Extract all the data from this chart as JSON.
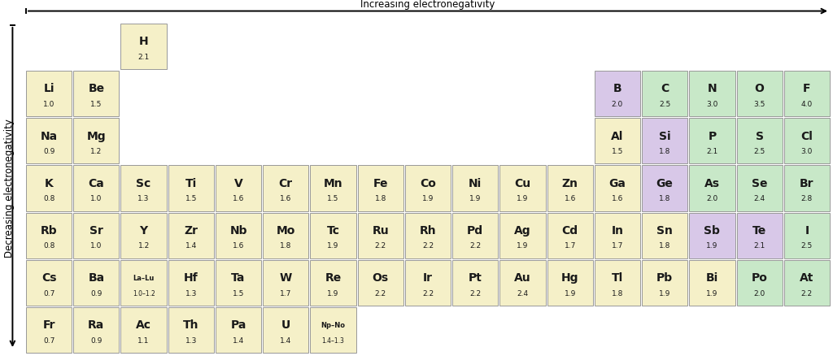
{
  "background": "#ffffff",
  "colors": {
    "yellow": "#f5f0c8",
    "purple": "#d8c8e8",
    "green": "#c8e8c8",
    "border": "#999999"
  },
  "elements": [
    {
      "symbol": "H",
      "value": "2.1",
      "col": 2,
      "row": 1,
      "color": "yellow"
    },
    {
      "symbol": "Li",
      "value": "1.0",
      "col": 0,
      "row": 2,
      "color": "yellow"
    },
    {
      "symbol": "Be",
      "value": "1.5",
      "col": 1,
      "row": 2,
      "color": "yellow"
    },
    {
      "symbol": "B",
      "value": "2.0",
      "col": 12,
      "row": 2,
      "color": "purple"
    },
    {
      "symbol": "C",
      "value": "2.5",
      "col": 13,
      "row": 2,
      "color": "green"
    },
    {
      "symbol": "N",
      "value": "3.0",
      "col": 14,
      "row": 2,
      "color": "green"
    },
    {
      "symbol": "O",
      "value": "3.5",
      "col": 15,
      "row": 2,
      "color": "green"
    },
    {
      "symbol": "F",
      "value": "4.0",
      "col": 16,
      "row": 2,
      "color": "green"
    },
    {
      "symbol": "Na",
      "value": "0.9",
      "col": 0,
      "row": 3,
      "color": "yellow"
    },
    {
      "symbol": "Mg",
      "value": "1.2",
      "col": 1,
      "row": 3,
      "color": "yellow"
    },
    {
      "symbol": "Al",
      "value": "1.5",
      "col": 12,
      "row": 3,
      "color": "yellow"
    },
    {
      "symbol": "Si",
      "value": "1.8",
      "col": 13,
      "row": 3,
      "color": "purple"
    },
    {
      "symbol": "P",
      "value": "2.1",
      "col": 14,
      "row": 3,
      "color": "green"
    },
    {
      "symbol": "S",
      "value": "2.5",
      "col": 15,
      "row": 3,
      "color": "green"
    },
    {
      "symbol": "Cl",
      "value": "3.0",
      "col": 16,
      "row": 3,
      "color": "green"
    },
    {
      "symbol": "K",
      "value": "0.8",
      "col": 0,
      "row": 4,
      "color": "yellow"
    },
    {
      "symbol": "Ca",
      "value": "1.0",
      "col": 1,
      "row": 4,
      "color": "yellow"
    },
    {
      "symbol": "Sc",
      "value": "1.3",
      "col": 2,
      "row": 4,
      "color": "yellow"
    },
    {
      "symbol": "Ti",
      "value": "1.5",
      "col": 3,
      "row": 4,
      "color": "yellow"
    },
    {
      "symbol": "V",
      "value": "1.6",
      "col": 4,
      "row": 4,
      "color": "yellow"
    },
    {
      "symbol": "Cr",
      "value": "1.6",
      "col": 5,
      "row": 4,
      "color": "yellow"
    },
    {
      "symbol": "Mn",
      "value": "1.5",
      "col": 6,
      "row": 4,
      "color": "yellow"
    },
    {
      "symbol": "Fe",
      "value": "1.8",
      "col": 7,
      "row": 4,
      "color": "yellow"
    },
    {
      "symbol": "Co",
      "value": "1.9",
      "col": 8,
      "row": 4,
      "color": "yellow"
    },
    {
      "symbol": "Ni",
      "value": "1.9",
      "col": 9,
      "row": 4,
      "color": "yellow"
    },
    {
      "symbol": "Cu",
      "value": "1.9",
      "col": 10,
      "row": 4,
      "color": "yellow"
    },
    {
      "symbol": "Zn",
      "value": "1.6",
      "col": 11,
      "row": 4,
      "color": "yellow"
    },
    {
      "symbol": "Ga",
      "value": "1.6",
      "col": 12,
      "row": 4,
      "color": "yellow"
    },
    {
      "symbol": "Ge",
      "value": "1.8",
      "col": 13,
      "row": 4,
      "color": "purple"
    },
    {
      "symbol": "As",
      "value": "2.0",
      "col": 14,
      "row": 4,
      "color": "green"
    },
    {
      "symbol": "Se",
      "value": "2.4",
      "col": 15,
      "row": 4,
      "color": "green"
    },
    {
      "symbol": "Br",
      "value": "2.8",
      "col": 16,
      "row": 4,
      "color": "green"
    },
    {
      "symbol": "Rb",
      "value": "0.8",
      "col": 0,
      "row": 5,
      "color": "yellow"
    },
    {
      "symbol": "Sr",
      "value": "1.0",
      "col": 1,
      "row": 5,
      "color": "yellow"
    },
    {
      "symbol": "Y",
      "value": "1.2",
      "col": 2,
      "row": 5,
      "color": "yellow"
    },
    {
      "symbol": "Zr",
      "value": "1.4",
      "col": 3,
      "row": 5,
      "color": "yellow"
    },
    {
      "symbol": "Nb",
      "value": "1.6",
      "col": 4,
      "row": 5,
      "color": "yellow"
    },
    {
      "symbol": "Mo",
      "value": "1.8",
      "col": 5,
      "row": 5,
      "color": "yellow"
    },
    {
      "symbol": "Tc",
      "value": "1.9",
      "col": 6,
      "row": 5,
      "color": "yellow"
    },
    {
      "symbol": "Ru",
      "value": "2.2",
      "col": 7,
      "row": 5,
      "color": "yellow"
    },
    {
      "symbol": "Rh",
      "value": "2.2",
      "col": 8,
      "row": 5,
      "color": "yellow"
    },
    {
      "symbol": "Pd",
      "value": "2.2",
      "col": 9,
      "row": 5,
      "color": "yellow"
    },
    {
      "symbol": "Ag",
      "value": "1.9",
      "col": 10,
      "row": 5,
      "color": "yellow"
    },
    {
      "symbol": "Cd",
      "value": "1.7",
      "col": 11,
      "row": 5,
      "color": "yellow"
    },
    {
      "symbol": "In",
      "value": "1.7",
      "col": 12,
      "row": 5,
      "color": "yellow"
    },
    {
      "symbol": "Sn",
      "value": "1.8",
      "col": 13,
      "row": 5,
      "color": "yellow"
    },
    {
      "symbol": "Sb",
      "value": "1.9",
      "col": 14,
      "row": 5,
      "color": "purple"
    },
    {
      "symbol": "Te",
      "value": "2.1",
      "col": 15,
      "row": 5,
      "color": "purple"
    },
    {
      "symbol": "I",
      "value": "2.5",
      "col": 16,
      "row": 5,
      "color": "green"
    },
    {
      "symbol": "Cs",
      "value": "0.7",
      "col": 0,
      "row": 6,
      "color": "yellow"
    },
    {
      "symbol": "Ba",
      "value": "0.9",
      "col": 1,
      "row": 6,
      "color": "yellow"
    },
    {
      "symbol": "La–Lu",
      "value": "1.0–1.2",
      "col": 2,
      "row": 6,
      "color": "yellow"
    },
    {
      "symbol": "Hf",
      "value": "1.3",
      "col": 3,
      "row": 6,
      "color": "yellow"
    },
    {
      "symbol": "Ta",
      "value": "1.5",
      "col": 4,
      "row": 6,
      "color": "yellow"
    },
    {
      "symbol": "W",
      "value": "1.7",
      "col": 5,
      "row": 6,
      "color": "yellow"
    },
    {
      "symbol": "Re",
      "value": "1.9",
      "col": 6,
      "row": 6,
      "color": "yellow"
    },
    {
      "symbol": "Os",
      "value": "2.2",
      "col": 7,
      "row": 6,
      "color": "yellow"
    },
    {
      "symbol": "Ir",
      "value": "2.2",
      "col": 8,
      "row": 6,
      "color": "yellow"
    },
    {
      "symbol": "Pt",
      "value": "2.2",
      "col": 9,
      "row": 6,
      "color": "yellow"
    },
    {
      "symbol": "Au",
      "value": "2.4",
      "col": 10,
      "row": 6,
      "color": "yellow"
    },
    {
      "symbol": "Hg",
      "value": "1.9",
      "col": 11,
      "row": 6,
      "color": "yellow"
    },
    {
      "symbol": "Tl",
      "value": "1.8",
      "col": 12,
      "row": 6,
      "color": "yellow"
    },
    {
      "symbol": "Pb",
      "value": "1.9",
      "col": 13,
      "row": 6,
      "color": "yellow"
    },
    {
      "symbol": "Bi",
      "value": "1.9",
      "col": 14,
      "row": 6,
      "color": "yellow"
    },
    {
      "symbol": "Po",
      "value": "2.0",
      "col": 15,
      "row": 6,
      "color": "green"
    },
    {
      "symbol": "At",
      "value": "2.2",
      "col": 16,
      "row": 6,
      "color": "green"
    },
    {
      "symbol": "Fr",
      "value": "0.7",
      "col": 0,
      "row": 7,
      "color": "yellow"
    },
    {
      "symbol": "Ra",
      "value": "0.9",
      "col": 1,
      "row": 7,
      "color": "yellow"
    },
    {
      "symbol": "Ac",
      "value": "1.1",
      "col": 2,
      "row": 7,
      "color": "yellow"
    },
    {
      "symbol": "Th",
      "value": "1.3",
      "col": 3,
      "row": 7,
      "color": "yellow"
    },
    {
      "symbol": "Pa",
      "value": "1.4",
      "col": 4,
      "row": 7,
      "color": "yellow"
    },
    {
      "symbol": "U",
      "value": "1.4",
      "col": 5,
      "row": 7,
      "color": "yellow"
    },
    {
      "symbol": "Np–No",
      "value": "1.4–1.3",
      "col": 6,
      "row": 7,
      "color": "yellow"
    }
  ],
  "top_arrow_text": "Increasing electronegativity",
  "left_arrow_text": "Decreasing electronegativity",
  "fig_width": 10.24,
  "fig_height": 4.39,
  "dpi": 100
}
